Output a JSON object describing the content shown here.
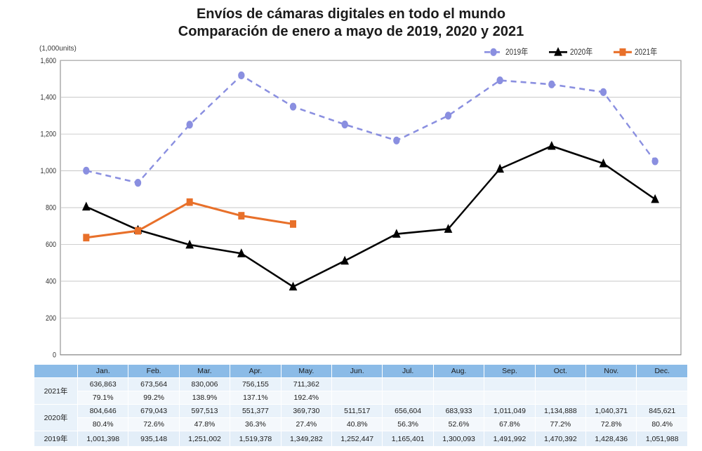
{
  "title_line1": "Envíos de cámaras digitales en todo el mundo",
  "title_line2": "Comparación de enero a mayo de 2019, 2020 y 2021",
  "y_unit_label": "(1,000units)",
  "chart": {
    "type": "line",
    "months": [
      "Jan.",
      "Feb.",
      "Mar.",
      "Apr.",
      "May.",
      "Jun.",
      "Jul.",
      "Aug.",
      "Sep.",
      "Oct.",
      "Nov.",
      "Dec."
    ],
    "ylim": [
      0,
      1600
    ],
    "ytick_step": 200,
    "grid_color": "#bfbfbf",
    "axis_color": "#808080",
    "background_color": "#ffffff",
    "legend": {
      "items": [
        {
          "label": "2019年",
          "color": "#8a8fe0",
          "marker": "circle",
          "dash": "8,6",
          "width": 2.2
        },
        {
          "label": "2020年",
          "color": "#000000",
          "marker": "triangle",
          "dash": "",
          "width": 2.2
        },
        {
          "label": "2021年",
          "color": "#e8702a",
          "marker": "square",
          "dash": "",
          "width": 2.6
        }
      ]
    },
    "series": {
      "2019": {
        "color": "#8a8fe0",
        "dash": "8,6",
        "width": 2.2,
        "marker": "circle",
        "values_thousands": [
          1001,
          935,
          1251,
          1519,
          1349,
          1252,
          1165,
          1300,
          1492,
          1470,
          1428,
          1052
        ]
      },
      "2020": {
        "color": "#000000",
        "dash": "",
        "width": 2.2,
        "marker": "triangle",
        "values_thousands": [
          805,
          679,
          598,
          551,
          370,
          511,
          657,
          684,
          1011,
          1135,
          1040,
          846
        ]
      },
      "2021": {
        "color": "#e8702a",
        "dash": "",
        "width": 2.6,
        "marker": "square",
        "values_thousands": [
          637,
          674,
          830,
          756,
          711
        ]
      }
    }
  },
  "table": {
    "header_bg": "#8bbbe7",
    "row_header_bg": "#d8e7f6",
    "band_a_bg": "#e9f2fa",
    "band_b_bg": "#f4f8fc",
    "band_c_bg": "#e3eef8",
    "months": [
      "Jan.",
      "Feb.",
      "Mar.",
      "Apr.",
      "May.",
      "Jun.",
      "Jul.",
      "Aug.",
      "Sep.",
      "Oct.",
      "Nov.",
      "Dec."
    ],
    "rows": [
      {
        "label": "2021年",
        "values": [
          "636,863",
          "673,564",
          "830,006",
          "756,155",
          "711,362",
          "",
          "",
          "",
          "",
          "",
          "",
          ""
        ],
        "pct": [
          "79.1%",
          "99.2%",
          "138.9%",
          "137.1%",
          "192.4%",
          "",
          "",
          "",
          "",
          "",
          "",
          ""
        ]
      },
      {
        "label": "2020年",
        "values": [
          "804,646",
          "679,043",
          "597,513",
          "551,377",
          "369,730",
          "511,517",
          "656,604",
          "683,933",
          "1,011,049",
          "1,134,888",
          "1,040,371",
          "845,621"
        ],
        "pct": [
          "80.4%",
          "72.6%",
          "47.8%",
          "36.3%",
          "27.4%",
          "40.8%",
          "56.3%",
          "52.6%",
          "67.8%",
          "77.2%",
          "72.8%",
          "80.4%"
        ]
      },
      {
        "label": "2019年",
        "values": [
          "1,001,398",
          "935,148",
          "1,251,002",
          "1,519,378",
          "1,349,282",
          "1,252,447",
          "1,165,401",
          "1,300,093",
          "1,491,992",
          "1,470,392",
          "1,428,436",
          "1,051,988"
        ]
      }
    ]
  }
}
